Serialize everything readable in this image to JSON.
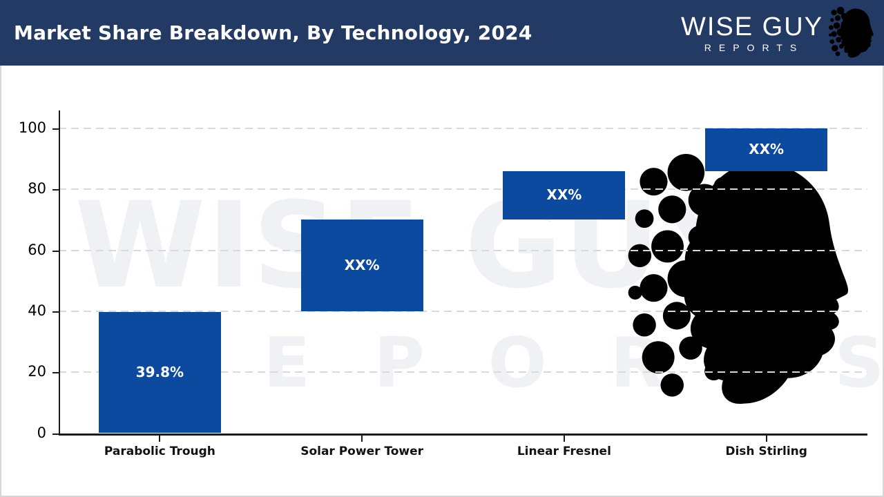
{
  "header": {
    "title": "Market Share Breakdown, By Technology, 2024",
    "logo": {
      "line1": "WISE GUY",
      "line2": "REPORTS"
    }
  },
  "watermark": {
    "line1": "WISE GUY",
    "line2": "REPORTS"
  },
  "chart_data": {
    "type": "bar",
    "subtype": "waterfall",
    "title": "Market Share Breakdown, By Technology, 2024",
    "categories": [
      "Parabolic Trough",
      "Solar Power Tower",
      "Linear Fresnel",
      "Dish Stirling"
    ],
    "segments": [
      {
        "category": "Parabolic Trough",
        "start": 0,
        "end": 39.8,
        "label": "39.8%"
      },
      {
        "category": "Solar Power Tower",
        "start": 40,
        "end": 70,
        "label": "XX%"
      },
      {
        "category": "Linear Fresnel",
        "start": 70,
        "end": 86,
        "label": "XX%"
      },
      {
        "category": "Dish Stirling",
        "start": 86,
        "end": 100,
        "label": "XX%"
      }
    ],
    "yticks": [
      0,
      20,
      40,
      60,
      80,
      100
    ],
    "ylim": [
      0,
      100
    ],
    "xlabel": "",
    "ylabel": "",
    "grid": "horizontal-dashed",
    "legend": "none",
    "bar_color": "#0b4a9e",
    "bar_label_color": "#ffffff"
  },
  "colors": {
    "header_bg": "#233a64",
    "bar": "#0b4a9e",
    "grid": "#d9d9d9",
    "axis": "#1a1a1a",
    "watermark": "#f0f1f4",
    "frame_border": "#d6d6d6"
  }
}
